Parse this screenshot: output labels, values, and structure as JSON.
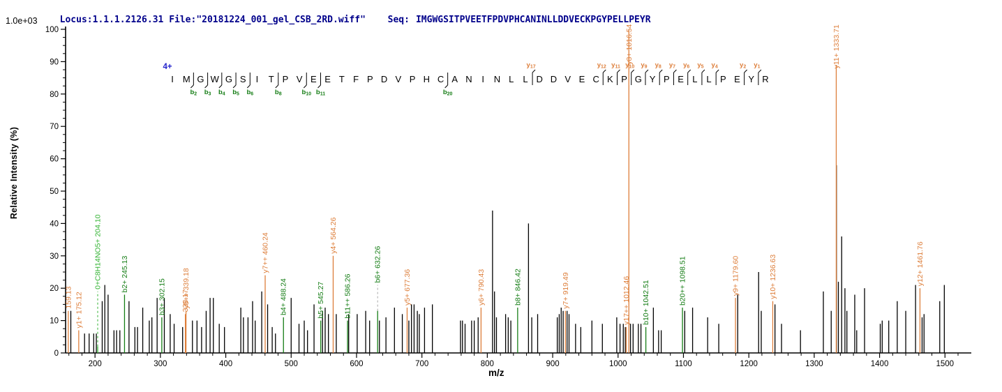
{
  "header": {
    "locus_file": "Locus:1.1.1.2126.31 File:\"20181224_001_gel_CSB_2RD.wiff\"",
    "seq_prefix": "Seq:",
    "sequence": "IMGWGSITPVEETFPDVPHCANINLLDDVECKPGYPELLPEYR"
  },
  "axes": {
    "y_scale_label": "1.0e+03",
    "y_axis_label": "Relative  Intensity (%)",
    "x_axis_label": "m/z"
  },
  "ladder": {
    "charge_label": "4+",
    "residues": "IMGWGSITPVEETFPDVPHCANINLLDDVECKPGYPELLPEYR",
    "b_ions": [
      2,
      3,
      4,
      5,
      6,
      8,
      10,
      11,
      20
    ],
    "y_ions": [
      17,
      12,
      11,
      10,
      9,
      8,
      7,
      6,
      5,
      4,
      2,
      1
    ]
  },
  "colors": {
    "y_ion": "#dd7e3a",
    "b_ion": "#157d15",
    "other_ion": "#33b333",
    "peak": "#000000",
    "header_text": "#00008b",
    "charge": "#2323cc",
    "axis": "#000000"
  },
  "chart_data": {
    "type": "bar",
    "subtype": "centroided MS/MS peptide fragmentation spectrum",
    "title": "",
    "xlabel": "m/z",
    "ylabel": "Relative  Intensity (%)",
    "intensity_scale": "1.0e+03",
    "xlim": [
      155,
      1536
    ],
    "ylim": [
      0,
      100
    ],
    "x_ticks": [
      200,
      300,
      400,
      500,
      600,
      700,
      800,
      900,
      1000,
      1100,
      1200,
      1300,
      1400,
      1500
    ],
    "x_minor_step": 20,
    "y_ticks": [
      0,
      10,
      20,
      30,
      40,
      50,
      60,
      70,
      80,
      90,
      100
    ],
    "y_minor_step": 2.5,
    "grid": false,
    "legend": false,
    "labeled_peaks": [
      {
        "label": "159.13",
        "ion": "y",
        "mz": 159.13,
        "pct": 13
      },
      {
        "label": "y1+ 175.12",
        "ion": "y",
        "mz": 175.12,
        "pct": 7
      },
      {
        "label": "0+C8H14NO5+ 204.10",
        "ion": "other",
        "mz": 204.1,
        "pct": 19,
        "peak_pct": 2,
        "dash_color": "#33b333"
      },
      {
        "label": "b2+ 245.13",
        "ion": "b",
        "mz": 245.13,
        "pct": 18
      },
      {
        "label": "b3+ 302.15",
        "ion": "b",
        "mz": 302.15,
        "pct": 11
      },
      {
        "label": "338.17",
        "ion": "y",
        "mz": 338.17,
        "pct": 12
      },
      {
        "label": "y5++ 339.18",
        "ion": "y",
        "mz": 339.18,
        "pct": 13
      },
      {
        "label": "y7++ 460.24",
        "ion": "y",
        "mz": 460.24,
        "pct": 24
      },
      {
        "label": "b4+ 488.24",
        "ion": "b",
        "mz": 488.24,
        "pct": 11
      },
      {
        "label": "b5+ 545.27",
        "ion": "b",
        "mz": 545.27,
        "pct": 10
      },
      {
        "label": "y4+ 564.26",
        "ion": "y",
        "mz": 564.26,
        "pct": 30
      },
      {
        "label": "b11++ 586.26",
        "ion": "b",
        "mz": 586.26,
        "pct": 10
      },
      {
        "label": "b6+ 632.26",
        "ion": "b",
        "mz": 632.26,
        "pct": 21,
        "peak_pct": 13,
        "dash_color": "#aaaaaa"
      },
      {
        "label": "y5+ 677.36",
        "ion": "y",
        "mz": 677.36,
        "pct": 14
      },
      {
        "label": "y6+ 790.43",
        "ion": "y",
        "mz": 790.43,
        "pct": 14
      },
      {
        "label": "b8+ 846.42",
        "ion": "b",
        "mz": 846.42,
        "pct": 14
      },
      {
        "label": "y7+ 919.49",
        "ion": "y",
        "mz": 919.49,
        "pct": 13
      },
      {
        "label": "y17++ 1012.46",
        "ion": "y",
        "mz": 1012.46,
        "pct": 8
      },
      {
        "label": "y8+ 1016.54",
        "ion": "y",
        "mz": 1016.54,
        "pct": 100
      },
      {
        "label": "b10+ 1042.51",
        "ion": "b",
        "mz": 1042.51,
        "pct": 8
      },
      {
        "label": "b20++ 1098.51",
        "ion": "b",
        "mz": 1098.51,
        "pct": 14
      },
      {
        "label": "y9+ 1179.60",
        "ion": "y",
        "mz": 1179.6,
        "pct": 17
      },
      {
        "label": "y10+ 1236.63",
        "ion": "y",
        "mz": 1236.63,
        "pct": 16
      },
      {
        "label": "y11+ 1333.71",
        "ion": "y",
        "mz": 1333.71,
        "pct": 89
      },
      {
        "label": "y12+ 1461.76",
        "ion": "y",
        "mz": 1461.76,
        "pct": 20
      }
    ],
    "peaks": [
      [
        163,
        13
      ],
      [
        184,
        6
      ],
      [
        191,
        6
      ],
      [
        198,
        6
      ],
      [
        202,
        6
      ],
      [
        211,
        16
      ],
      [
        215,
        21
      ],
      [
        220,
        18
      ],
      [
        229,
        7
      ],
      [
        233,
        7
      ],
      [
        238,
        7
      ],
      [
        252,
        16
      ],
      [
        261,
        8
      ],
      [
        265,
        8
      ],
      [
        273,
        14
      ],
      [
        283,
        10
      ],
      [
        287,
        11
      ],
      [
        295,
        17
      ],
      [
        306,
        17
      ],
      [
        315,
        12
      ],
      [
        321,
        9
      ],
      [
        334,
        8
      ],
      [
        349,
        10
      ],
      [
        356,
        10
      ],
      [
        363,
        8
      ],
      [
        370,
        13
      ],
      [
        376,
        17
      ],
      [
        381,
        17
      ],
      [
        390,
        9
      ],
      [
        398,
        8
      ],
      [
        423,
        14
      ],
      [
        427,
        11
      ],
      [
        434,
        11
      ],
      [
        441,
        16
      ],
      [
        445,
        10
      ],
      [
        455,
        19
      ],
      [
        464,
        15
      ],
      [
        471,
        8
      ],
      [
        476,
        6
      ],
      [
        500,
        17
      ],
      [
        512,
        9
      ],
      [
        520,
        10
      ],
      [
        525,
        7
      ],
      [
        535,
        15
      ],
      [
        548,
        13
      ],
      [
        552,
        14
      ],
      [
        557,
        12
      ],
      [
        569,
        12
      ],
      [
        588,
        12
      ],
      [
        601,
        12
      ],
      [
        614,
        13
      ],
      [
        620,
        10
      ],
      [
        635,
        10
      ],
      [
        645,
        11
      ],
      [
        658,
        14
      ],
      [
        670,
        12
      ],
      [
        680,
        10
      ],
      [
        684,
        15
      ],
      [
        688,
        15
      ],
      [
        693,
        13
      ],
      [
        696,
        12
      ],
      [
        704,
        14
      ],
      [
        716,
        15
      ],
      [
        759,
        10
      ],
      [
        762,
        10
      ],
      [
        766,
        9
      ],
      [
        776,
        10
      ],
      [
        780,
        10
      ],
      [
        786,
        11
      ],
      [
        808,
        44
      ],
      [
        811,
        19
      ],
      [
        814,
        11
      ],
      [
        828,
        12
      ],
      [
        832,
        11
      ],
      [
        836,
        10
      ],
      [
        863,
        40
      ],
      [
        868,
        11
      ],
      [
        877,
        12
      ],
      [
        907,
        11
      ],
      [
        910,
        12
      ],
      [
        913,
        14
      ],
      [
        916,
        13
      ],
      [
        922,
        13
      ],
      [
        925,
        12
      ],
      [
        935,
        9
      ],
      [
        943,
        8
      ],
      [
        960,
        10
      ],
      [
        976,
        9
      ],
      [
        998,
        11
      ],
      [
        1003,
        9
      ],
      [
        1008,
        9
      ],
      [
        1011,
        8
      ],
      [
        1019,
        9
      ],
      [
        1023,
        9
      ],
      [
        1031,
        9
      ],
      [
        1035,
        9
      ],
      [
        1054,
        14
      ],
      [
        1062,
        7
      ],
      [
        1066,
        7
      ],
      [
        1102,
        13
      ],
      [
        1114,
        14
      ],
      [
        1137,
        11
      ],
      [
        1154,
        9
      ],
      [
        1183,
        18
      ],
      [
        1215,
        25
      ],
      [
        1219,
        13
      ],
      [
        1240,
        15
      ],
      [
        1250,
        9
      ],
      [
        1279,
        7
      ],
      [
        1314,
        19
      ],
      [
        1326,
        13
      ],
      [
        1334,
        58
      ],
      [
        1337,
        22
      ],
      [
        1342,
        36
      ],
      [
        1347,
        20
      ],
      [
        1350,
        13
      ],
      [
        1362,
        18
      ],
      [
        1365,
        7
      ],
      [
        1377,
        20
      ],
      [
        1401,
        9
      ],
      [
        1404,
        10
      ],
      [
        1414,
        10
      ],
      [
        1427,
        16
      ],
      [
        1440,
        13
      ],
      [
        1455,
        21
      ],
      [
        1465,
        11
      ],
      [
        1468,
        12
      ],
      [
        1492,
        16
      ],
      [
        1499,
        21
      ]
    ]
  }
}
